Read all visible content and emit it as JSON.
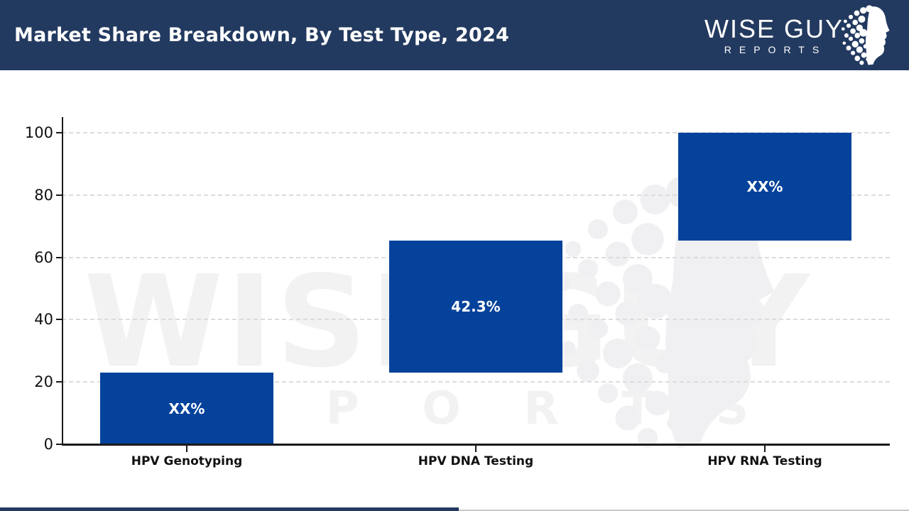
{
  "header": {
    "title": "Market Share Breakdown, By Test Type, 2024",
    "bg_color": "#233a60",
    "logo": {
      "line1": "WISE GUY",
      "line2": "REPORTS"
    }
  },
  "watermark": {
    "line1": "WISE GUY",
    "line2": "REPORTS",
    "color": "#f2f2f3"
  },
  "chart_data": {
    "type": "bar",
    "subtype": "waterfall",
    "title": "Market Share Breakdown, By Test Type, 2024",
    "categories": [
      "HPV Genotyping",
      "HPV DNA Testing",
      "HPV RNA Testing"
    ],
    "segments": [
      {
        "category": "HPV Genotyping",
        "start": 0,
        "end": 23,
        "label": "XX%"
      },
      {
        "category": "HPV DNA Testing",
        "start": 23,
        "end": 65.3,
        "label": "42.3%"
      },
      {
        "category": "HPV RNA Testing",
        "start": 65.3,
        "end": 100,
        "label": "XX%"
      }
    ],
    "yticks": [
      0,
      20,
      40,
      60,
      80,
      100
    ],
    "ylim": [
      0,
      105
    ],
    "xlabel": "",
    "ylabel": "",
    "grid": "horizontal-dashed",
    "legend": "none",
    "bar_color": "#05429b",
    "bar_label_color": "#ffffff",
    "axis_color": "#1a1a1a",
    "gridline_color": "#dcdcdc"
  },
  "footer": {
    "bar_color": "#233a60"
  }
}
